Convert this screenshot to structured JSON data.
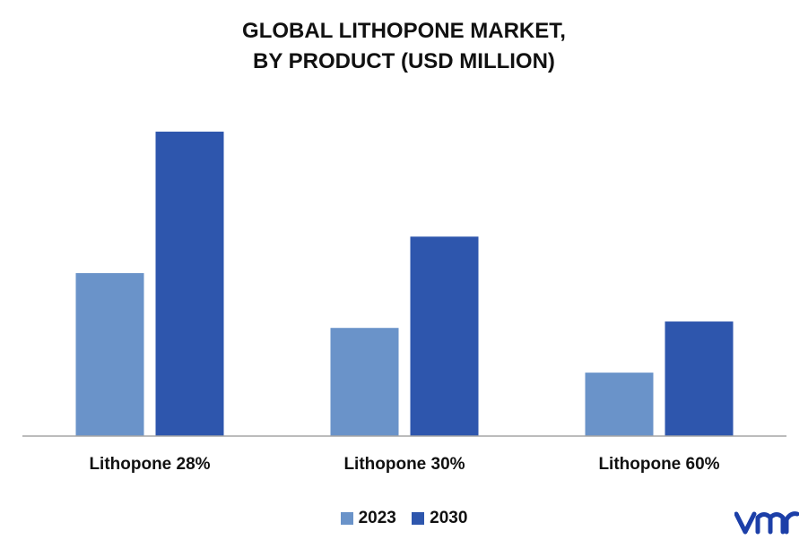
{
  "chart_data": {
    "type": "bar",
    "title_lines": [
      "GLOBAL LITHOPONE MARKET,",
      "BY PRODUCT (USD MILLION)"
    ],
    "categories": [
      "Lithopone 28%",
      "Lithopone 30%",
      "Lithopone 60%"
    ],
    "series": [
      {
        "name": "2023",
        "values": [
          178,
          118,
          69
        ],
        "color": "#6a93c9"
      },
      {
        "name": "2030",
        "values": [
          333,
          218,
          125
        ],
        "color": "#2e56ad"
      }
    ],
    "ylim": [
      0,
      360
    ],
    "grid": false,
    "legend_position": "bottom-center",
    "y_axis_labels_shown": false
  },
  "colors": {
    "axis": "#a6a6a6",
    "logo": "#1c3fa8"
  },
  "logo": {
    "icon": "vmr-logo-icon",
    "text": "vmr"
  }
}
